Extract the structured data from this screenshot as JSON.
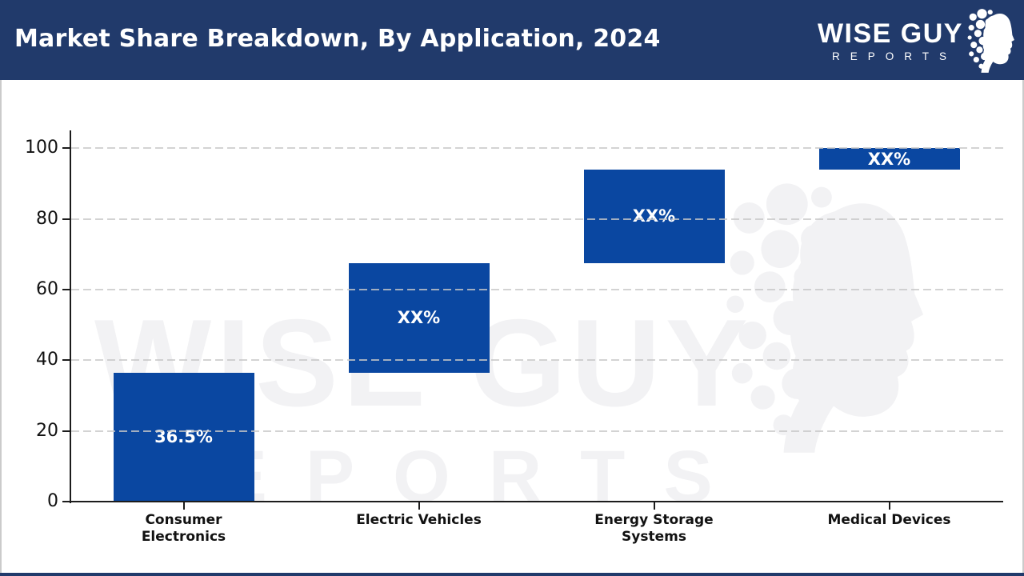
{
  "header": {
    "title": "Market Share Breakdown, By Application, 2024",
    "logo": {
      "name": "WISE GUY",
      "sub": "REPORTS"
    }
  },
  "watermark": {
    "name": "WISE GUY",
    "sub": "REPORTS"
  },
  "chart_data": {
    "type": "bar",
    "subtype": "waterfall",
    "title": "Market Share Breakdown, By Application, 2024",
    "categories": [
      "Consumer Electronics",
      "Electric Vehicles",
      "Energy Storage Systems",
      "Medical Devices"
    ],
    "category_label_lines": [
      [
        "Consumer",
        "Electronics"
      ],
      [
        "Electric Vehicles"
      ],
      [
        "Energy Storage",
        "Systems"
      ],
      [
        "Medical Devices"
      ]
    ],
    "bars": [
      {
        "category": "Consumer Electronics",
        "start": 0,
        "end": 36.5,
        "label": "36.5%"
      },
      {
        "category": "Electric Vehicles",
        "start": 36.5,
        "end": 67.5,
        "label": "XX%"
      },
      {
        "category": "Energy Storage Systems",
        "start": 67.5,
        "end": 94,
        "label": "XX%"
      },
      {
        "category": "Medical Devices",
        "start": 94,
        "end": 100,
        "label": "XX%"
      }
    ],
    "xlabel": "",
    "ylabel": "",
    "ylim": [
      0,
      105
    ],
    "yticks": [
      0,
      20,
      40,
      60,
      80,
      100
    ],
    "grid": "horizontal-dashed",
    "legend": "none",
    "bar_color": "#0a47a1",
    "value_label_color": "#ffffff"
  },
  "colors": {
    "header_bg": "#213a6b",
    "footer_bg": "#213a6b",
    "axis": "#1c1c1c",
    "watermark": "#f2f2f4"
  }
}
